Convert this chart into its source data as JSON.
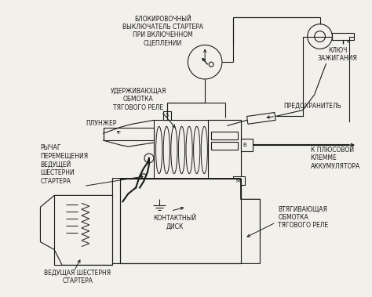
{
  "bg_color": "#f2f0eb",
  "line_color": "#1a1a1a",
  "labels": {
    "blokirovochny": "БЛОКИРОВОЧНЫЙ\nВЫКЛЮЧАТЕЛЬ СТАРТЕРА\nПРИ ВКЛЮЧЕННОМ\nСЦЕПЛЕНИИ",
    "uderzhivayushchaya": "УДЕРЖИВАЮЩАЯ\nОБМОТКА\nТЯГОВОГО РЕЛЕ",
    "plunzher": "ПЛУНЖЕР",
    "rychag": "РЫЧАГ\nПЕРЕМЕЩЕНИЯ\nВЕДУЩЕЙ\nШЕСТЕРНИ\nСТАРТЕРА",
    "klyuch": "КЛЮЧ\nЗАЖИГАНИЯ",
    "predohranitel": "ПРЕДОХРАНИТЕЛЬ",
    "k_plusovoy": "К ПЛЮСОВОЙ\nКЛЕММЕ\nАККУМУЛЯТОРА",
    "vtяgivaushchaya": "ВТЯГИВАЮЩАЯ\nОБМОТКА\nТЯГОВОГО РЕЛЕ",
    "kontaktny_disk": "КОНТАКТНЫЙ\nДИСК",
    "vedushchaya": "ВЕДУЩАЯ ШЕСТЕРНЯ\nСТАРТЕРА"
  },
  "fs": 5.5
}
